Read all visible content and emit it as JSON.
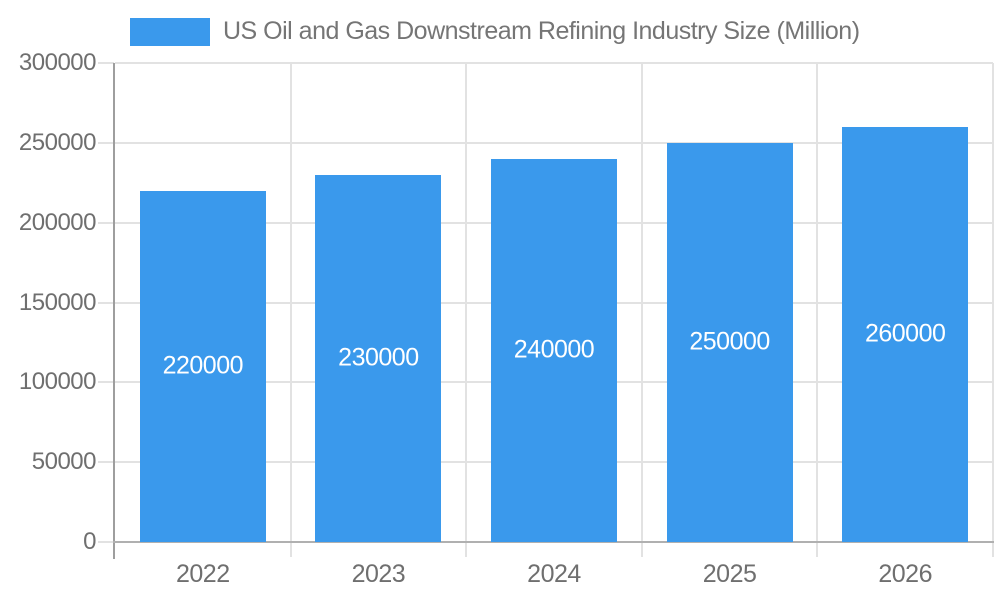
{
  "legend": {
    "label": "US Oil and Gas Downstream Refining Industry Size (Million)"
  },
  "chart_data": {
    "type": "bar",
    "title": "US Oil and Gas Downstream Refining Industry Size (Million)",
    "categories": [
      "2022",
      "2023",
      "2024",
      "2025",
      "2026"
    ],
    "values": [
      220000,
      230000,
      240000,
      250000,
      260000
    ],
    "bar_labels": [
      "220000",
      "230000",
      "240000",
      "250000",
      "260000"
    ],
    "xlabel": "",
    "ylabel": "",
    "ylim": [
      0,
      300000
    ],
    "yticks": [
      0,
      50000,
      100000,
      150000,
      200000,
      250000,
      300000
    ],
    "ytick_labels": [
      "0",
      "50000",
      "100000",
      "150000",
      "200000",
      "250000",
      "300000"
    ],
    "grid": true,
    "legend_position": "top",
    "value_label_position": "center-inside",
    "colors": {
      "bar": "#3A99EC",
      "bar_label_text": "#FFFFFF",
      "tick_text": "#6F6F6F",
      "legend_text": "#757575",
      "gridline": "#E2E2E2",
      "axis": "#B0B0B0",
      "y_axis": "#9E9E9E",
      "background": "#FFFFFF"
    }
  }
}
